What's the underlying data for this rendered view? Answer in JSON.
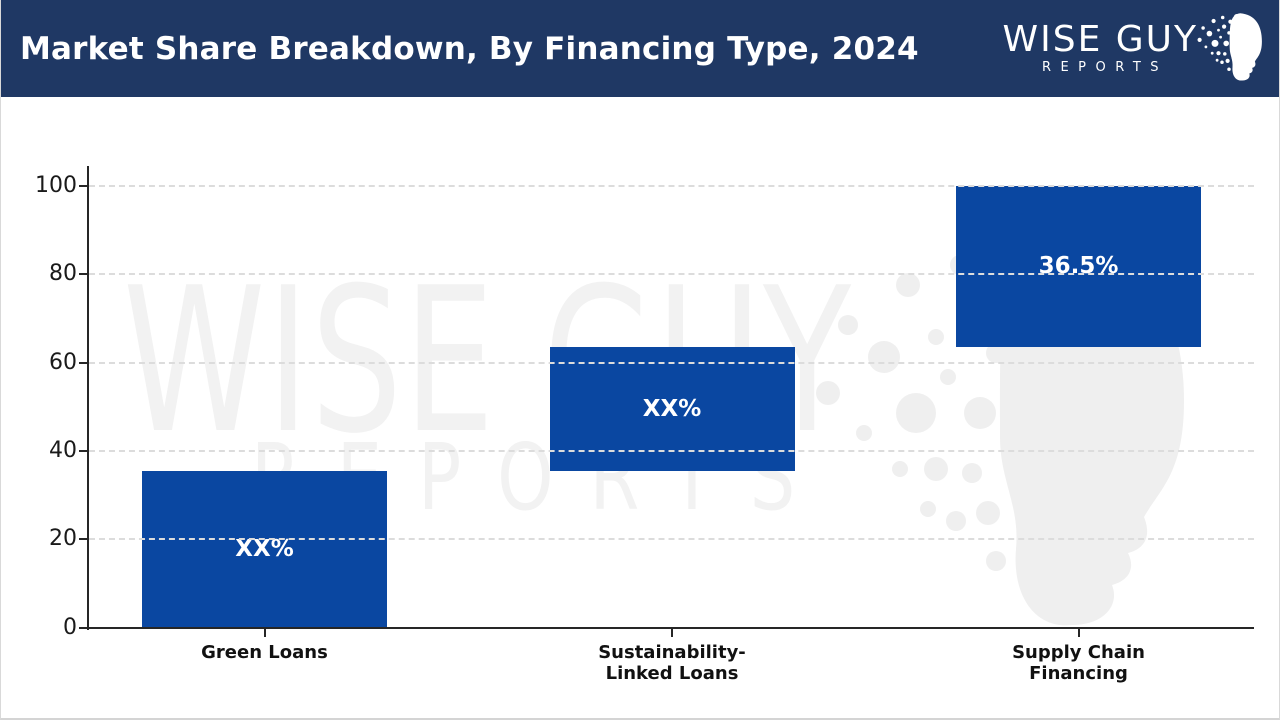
{
  "header": {
    "title": "Market Share Breakdown, By Financing Type, 2024",
    "logo": {
      "name": "WISE GUY",
      "sub": "REPORTS"
    }
  },
  "watermark": {
    "line1": "WISE GUY",
    "line2": "REPORTS"
  },
  "colors": {
    "header_bg": "#1f3864",
    "bar": "#0a47a1",
    "grid": "#dcdcdc",
    "axis": "#262626",
    "bar_label": "#ffffff"
  },
  "chart_data": {
    "type": "bar",
    "subtype": "floating-waterfall",
    "title": "Market Share Breakdown, By Financing Type, 2024",
    "categories": [
      "Green Loans",
      "Sustainability-Linked Loans",
      "Supply Chain Financing"
    ],
    "category_lines": [
      [
        "Green Loans"
      ],
      [
        "Sustainability-",
        "Linked Loans"
      ],
      [
        "Supply Chain",
        "Financing"
      ]
    ],
    "bars": [
      {
        "category": "Green Loans",
        "from": 0,
        "to": 35.5,
        "label": "XX%"
      },
      {
        "category": "Sustainability-Linked Loans",
        "from": 35.5,
        "to": 63.5,
        "label": "XX%"
      },
      {
        "category": "Supply Chain Financing",
        "from": 63.5,
        "to": 100,
        "label": "36.5%"
      }
    ],
    "yticks": [
      0,
      20,
      40,
      60,
      80,
      100
    ],
    "ylim": [
      0,
      104.5
    ],
    "xlabel": "",
    "ylabel": "",
    "grid": "horizontal-dashed",
    "legend": "none"
  }
}
